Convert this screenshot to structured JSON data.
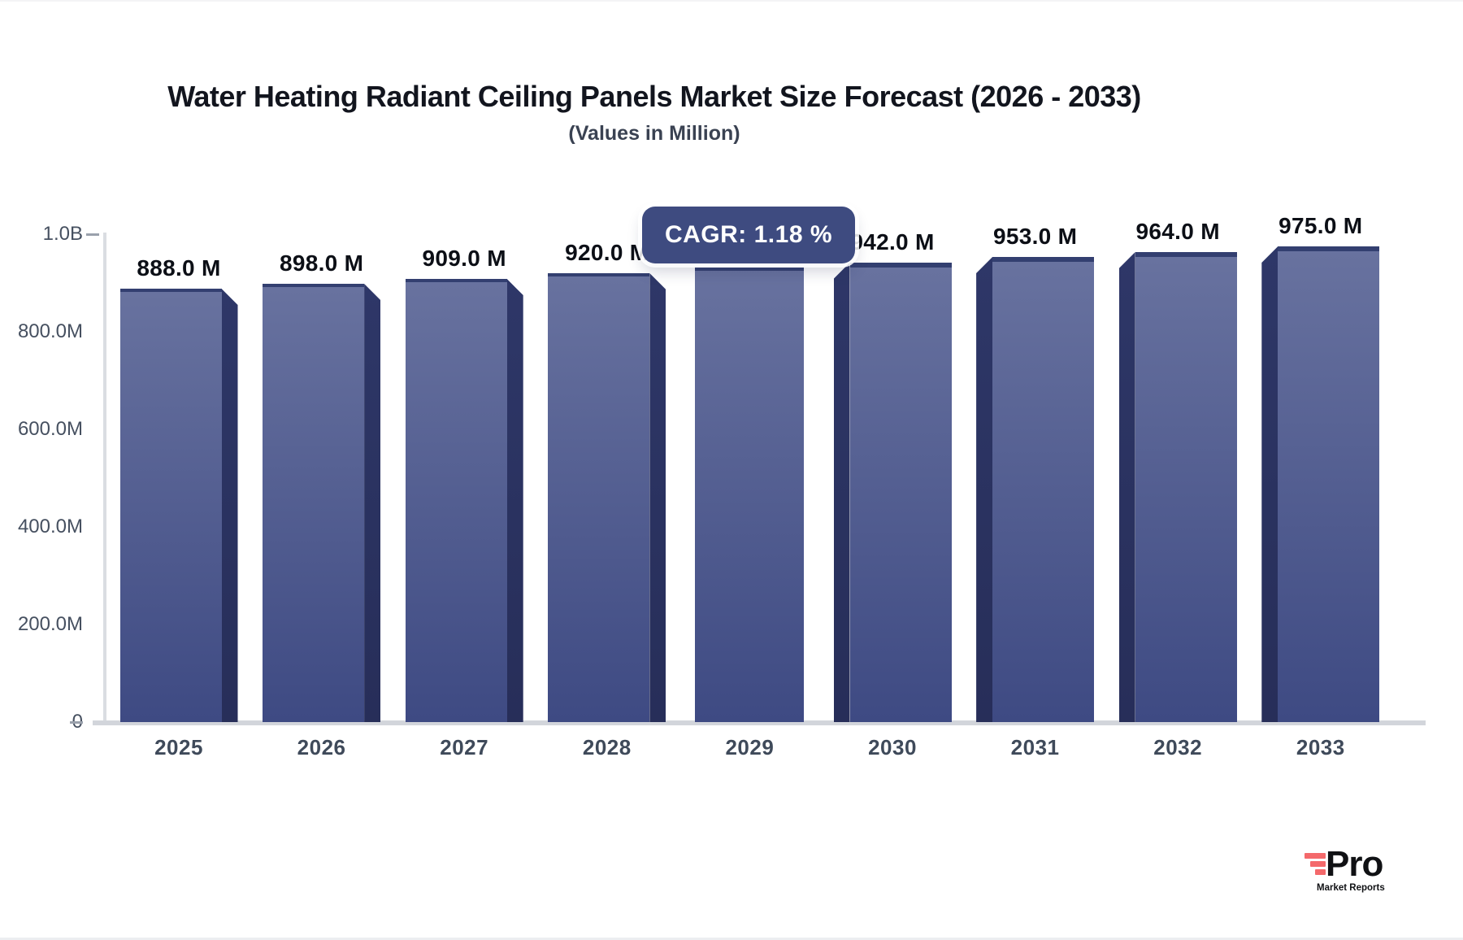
{
  "header": {
    "title": "Water Heating Radiant Ceiling Panels Market Size Forecast (2026 - 2033)",
    "subtitle": "(Values in Million)"
  },
  "badge": {
    "label": "CAGR: 1.18 %"
  },
  "chart_data": {
    "type": "bar",
    "title": "Water Heating Radiant Ceiling Panels Market Size Forecast (2026 - 2033)",
    "subtitle": "(Values in Million)",
    "categories": [
      "2025",
      "2026",
      "2027",
      "2028",
      "2029",
      "2030",
      "2031",
      "2032",
      "2033"
    ],
    "values": [
      888,
      898,
      909,
      920,
      931,
      942,
      953,
      964,
      975
    ],
    "bar_labels": [
      "888.0 M",
      "898.0 M",
      "909.0 M",
      "920.0 M",
      "",
      "942.0 M",
      "953.0 M",
      "964.0 M",
      "975.0 M"
    ],
    "unit": "Million",
    "ylim": [
      0,
      1000
    ],
    "yticks": [
      {
        "label": "1.0B",
        "value": 1000,
        "tick": true
      },
      {
        "label": "800.0M",
        "value": 800,
        "tick": false
      },
      {
        "label": "600.0M",
        "value": 600,
        "tick": false
      },
      {
        "label": "400.0M",
        "value": 400,
        "tick": false
      },
      {
        "label": "200.0M",
        "value": 200,
        "tick": false
      },
      {
        "label": "0",
        "value": 0,
        "tick": true
      }
    ],
    "grid": false,
    "legend": false,
    "annotation": "CAGR: 1.18 %"
  },
  "colors": {
    "bar_face_top": "#68729f",
    "bar_face_bottom": "#3e4a83",
    "bar_side_top": "#2e3768",
    "bar_side_bottom": "#272e59",
    "bar_top_edge": "#333f70",
    "badge_bg": "#3e4b80",
    "badge_text": "#ffffff",
    "axis_line": "#d2d5db",
    "axis_text": "#3f4a5a",
    "value_text": "#0c0f16",
    "logo_red": "#f4696b",
    "logo_text": "#101114"
  },
  "logo": {
    "name": "Pro",
    "tagline": "Market Reports"
  }
}
